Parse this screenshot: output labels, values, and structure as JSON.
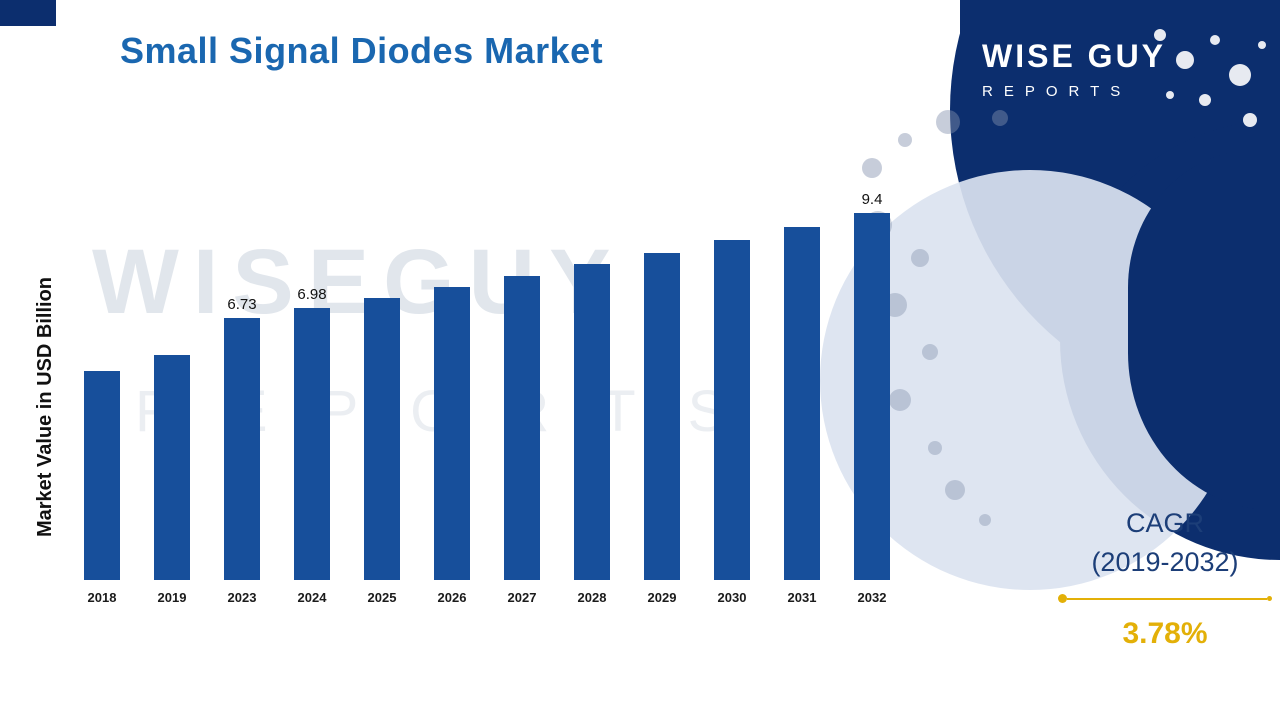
{
  "header": {
    "title": "Small Signal Diodes Market"
  },
  "logo": {
    "name": "WISE GUY",
    "subtitle": "REPORTS"
  },
  "watermark": {
    "line1": "WISEGUY",
    "line2": "REPORTS"
  },
  "cagr": {
    "label": "CAGR",
    "range": "(2019-2032)",
    "value": "3.78%"
  },
  "colors": {
    "title_blue": "#1a67b0",
    "bar_blue": "#174f9b",
    "panel_navy": "#0c2e6e",
    "accent_gold": "#e3b008",
    "cagr_navy": "#1c3e78"
  },
  "chart_data": {
    "type": "bar",
    "title": "Small Signal Diodes Market",
    "xlabel": "",
    "ylabel": "Market Value in USD Billion",
    "categories": [
      "2018",
      "2019",
      "2023",
      "2024",
      "2025",
      "2026",
      "2027",
      "2028",
      "2029",
      "2030",
      "2031",
      "2032"
    ],
    "values": [
      5.35,
      5.78,
      6.73,
      6.98,
      7.24,
      7.51,
      7.79,
      8.09,
      8.39,
      8.71,
      9.04,
      9.4
    ],
    "value_labels": [
      null,
      null,
      "6.73",
      "6.98",
      null,
      null,
      null,
      null,
      null,
      null,
      null,
      "9.4"
    ],
    "bar_color": "#174f9b",
    "ylim": [
      0,
      10
    ],
    "grid": false,
    "legend": "none"
  }
}
